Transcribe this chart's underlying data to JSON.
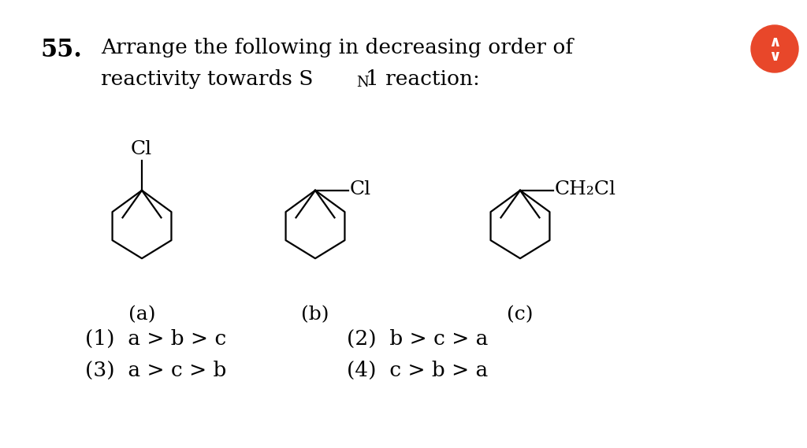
{
  "background_color": "#ffffff",
  "question_number": "55.",
  "question_text_line1": "Arrange the following in decreasing order of",
  "question_text_line2_pre": "reactivity towards S",
  "question_text_sub": "N",
  "question_text_line2_post": "1 reaction:",
  "label_a": "(a)",
  "label_b": "(b)",
  "label_c": "(c)",
  "option1": "(1)  a > b > c",
  "option2": "(2)  b > c > a",
  "option3": "(3)  a > c > b",
  "option4": "(4)  c > b > a",
  "cl_label_a": "Cl",
  "cl_label_b": "Cl",
  "cl_label_c": "CH₂Cl",
  "badge_color": "#e8472a",
  "figsize": [
    10.24,
    5.69
  ],
  "dpi": 100,
  "lw": 1.6
}
